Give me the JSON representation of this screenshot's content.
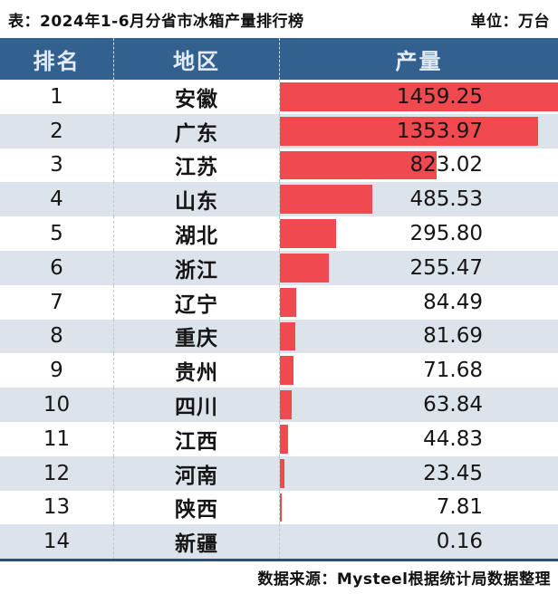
{
  "title": "表：2024年1-6月分省市冰箱产量排行榜",
  "unit": "单位：万台",
  "footer": "数据来源：Mysteel根据统计局数据整理",
  "columns": [
    "排名",
    "地区",
    "产量"
  ],
  "colors": {
    "header_bg": "#32608f",
    "row_stripe": "#dce3eb",
    "bar_red": "#f04a50",
    "bottom_border": "#2b5179",
    "header_text": "#e3ebf5",
    "body_text": "#151515"
  },
  "table": {
    "rows": [
      {
        "rank": "1",
        "region": "安徽",
        "value": "1459.25"
      },
      {
        "rank": "2",
        "region": "广东",
        "value": "1353.97"
      },
      {
        "rank": "3",
        "region": "江苏",
        "value": "823.02"
      },
      {
        "rank": "4",
        "region": "山东",
        "value": "485.53"
      },
      {
        "rank": "5",
        "region": "湖北",
        "value": "295.80"
      },
      {
        "rank": "6",
        "region": "浙江",
        "value": "255.47"
      },
      {
        "rank": "7",
        "region": "辽宁",
        "value": "84.49"
      },
      {
        "rank": "8",
        "region": "重庆",
        "value": "81.69"
      },
      {
        "rank": "9",
        "region": "贵州",
        "value": "71.68"
      },
      {
        "rank": "10",
        "region": "四川",
        "value": "63.84"
      },
      {
        "rank": "11",
        "region": "江西",
        "value": "44.83"
      },
      {
        "rank": "12",
        "region": "河南",
        "value": "23.45"
      },
      {
        "rank": "13",
        "region": "陕西",
        "value": "7.81"
      },
      {
        "rank": "14",
        "region": "新疆",
        "value": "0.16"
      }
    ]
  },
  "chart_data": {
    "type": "bar",
    "title": "2024年1-6月分省市冰箱产量排行榜",
    "unit": "万台",
    "orientation": "horizontal",
    "categories": [
      "安徽",
      "广东",
      "江苏",
      "山东",
      "湖北",
      "浙江",
      "辽宁",
      "重庆",
      "贵州",
      "四川",
      "江西",
      "河南",
      "陕西",
      "新疆"
    ],
    "values": [
      1459.25,
      1353.97,
      823.02,
      485.53,
      295.8,
      255.47,
      84.49,
      81.69,
      71.68,
      63.84,
      44.83,
      23.45,
      7.81,
      0.16
    ],
    "ranks": [
      1,
      2,
      3,
      4,
      5,
      6,
      7,
      8,
      9,
      10,
      11,
      12,
      13,
      14
    ],
    "xlim": [
      0,
      1459.25
    ],
    "grid": false,
    "legend": false,
    "source": "数据来源：Mysteel根据统计局数据整理"
  }
}
